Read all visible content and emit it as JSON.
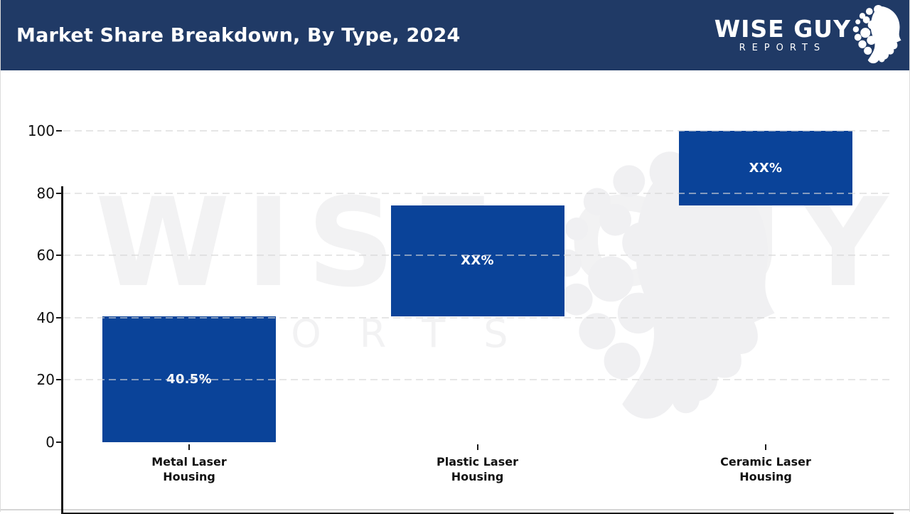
{
  "header": {
    "title": "Market Share Breakdown, By Type, 2024",
    "bg_color": "#203A66",
    "logo": {
      "line1": "WISE GUY",
      "line2": "REPORTS",
      "face_icon": "dotted-profile-face"
    }
  },
  "watermark": {
    "line1": "WISE GUY",
    "line2": "REPORTS"
  },
  "chart_data": {
    "type": "bar",
    "subtype": "floating-segment-waterfall-percent",
    "title": "Market Share Breakdown, By Type, 2024",
    "categories": [
      [
        "Metal Laser",
        "Housing"
      ],
      [
        "Plastic Laser",
        "Housing"
      ],
      [
        "Ceramic Laser",
        "Housing"
      ]
    ],
    "segments": [
      {
        "category": "Metal Laser Housing",
        "start": 0,
        "end": 40.5,
        "label": "40.5%"
      },
      {
        "category": "Plastic Laser Housing",
        "start": 40.5,
        "end": 76,
        "label": "XX%"
      },
      {
        "category": "Ceramic Laser Housing",
        "start": 76,
        "end": 100,
        "label": "XX%"
      }
    ],
    "xlabel": "",
    "ylabel": "",
    "yticks": [
      0,
      20,
      40,
      60,
      80,
      100
    ],
    "ylim": [
      0,
      104
    ],
    "grid": "horizontal-dashed",
    "legend": "none",
    "bar_color": "#0A4399",
    "bar_label_color": "#FFFFFF",
    "axis_color": "#1A1A1A",
    "grid_color": "#D9D9D9",
    "tick_label_color": "#111111"
  }
}
